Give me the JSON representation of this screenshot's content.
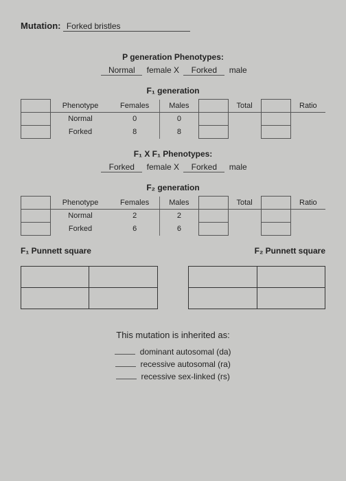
{
  "mutation": {
    "label": "Mutation:",
    "value": "Forked bristles"
  },
  "p_gen": {
    "title": "P generation Phenotypes:",
    "left": "Normal",
    "cross": "female X",
    "right": "Forked",
    "end": "male"
  },
  "f1": {
    "title": "F₁ generation",
    "headers": {
      "pheno": "Phenotype",
      "females": "Females",
      "males": "Males",
      "total": "Total",
      "ratio": "Ratio"
    },
    "rows": [
      {
        "phenotype": "Normal",
        "females": "0",
        "males": "0"
      },
      {
        "phenotype": "Forked",
        "females": "8",
        "males": "8"
      }
    ]
  },
  "f1xf1": {
    "title": "F₁ X F₁ Phenotypes:",
    "left": "Forked",
    "cross": "female X",
    "right": "Forked",
    "end": "male"
  },
  "f2": {
    "title": "F₂ generation",
    "headers": {
      "pheno": "Phenotype",
      "females": "Females",
      "males": "Males",
      "total": "Total",
      "ratio": "Ratio"
    },
    "rows": [
      {
        "phenotype": "Normal",
        "females": "2",
        "males": "2"
      },
      {
        "phenotype": "Forked",
        "females": "6",
        "males": "6"
      }
    ]
  },
  "punnett": {
    "left_label": "F₁ Punnett square",
    "right_label": "F₂ Punnett square"
  },
  "inheritance": {
    "title": "This mutation is inherited as:",
    "opt1": "dominant autosomal (da)",
    "opt2": "recessive autosomal (ra)",
    "opt3": "recessive sex-linked (rs)"
  }
}
